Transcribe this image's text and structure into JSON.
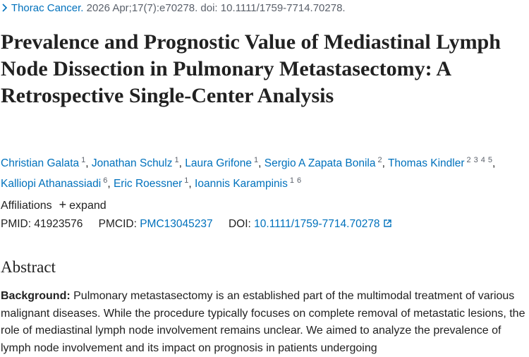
{
  "citation": {
    "journal": "Thorac Cancer.",
    "details": "2026 Apr;17(7):e70278. doi: 10.1111/1759-7714.70278."
  },
  "title": "Prevalence and Prognostic Value of Mediastinal Lymph Node Dissection in Pulmonary Metastasectomy: A Retrospective Single-Center Analysis",
  "authors": [
    {
      "name": "Christian Galata",
      "affiliations": [
        "1"
      ]
    },
    {
      "name": "Jonathan Schulz",
      "affiliations": [
        "1"
      ]
    },
    {
      "name": "Laura Grifone",
      "affiliations": [
        "1"
      ]
    },
    {
      "name": "Sergio A Zapata Bonila",
      "affiliations": [
        "2"
      ]
    },
    {
      "name": "Thomas Kindler",
      "affiliations": [
        "2",
        "3",
        "4",
        "5"
      ]
    },
    {
      "name": "Kalliopi Athanassiadi",
      "affiliations": [
        "6"
      ]
    },
    {
      "name": "Eric Roessner",
      "affiliations": [
        "1"
      ]
    },
    {
      "name": "Ioannis Karampinis",
      "affiliations": [
        "1",
        "6"
      ]
    }
  ],
  "affiliations": {
    "label": "Affiliations",
    "toggle": "expand"
  },
  "identifiers": {
    "pmid_label": "PMID:",
    "pmid": "41923576",
    "pmcid_label": "PMCID:",
    "pmcid": "PMC13045237",
    "doi_label": "DOI:",
    "doi": "10.1111/1759-7714.70278"
  },
  "abstract": {
    "heading": "Abstract",
    "background_label": "Background:",
    "background_text": "Pulmonary metastasectomy is an established part of the multimodal treatment of various malignant diseases. While the procedure typically focuses on complete removal of metastatic lesions, the role of mediastinal lymph node involvement remains unclear. We aimed to analyze the prevalence of lymph node involvement and its impact on prognosis in patients undergoing"
  }
}
